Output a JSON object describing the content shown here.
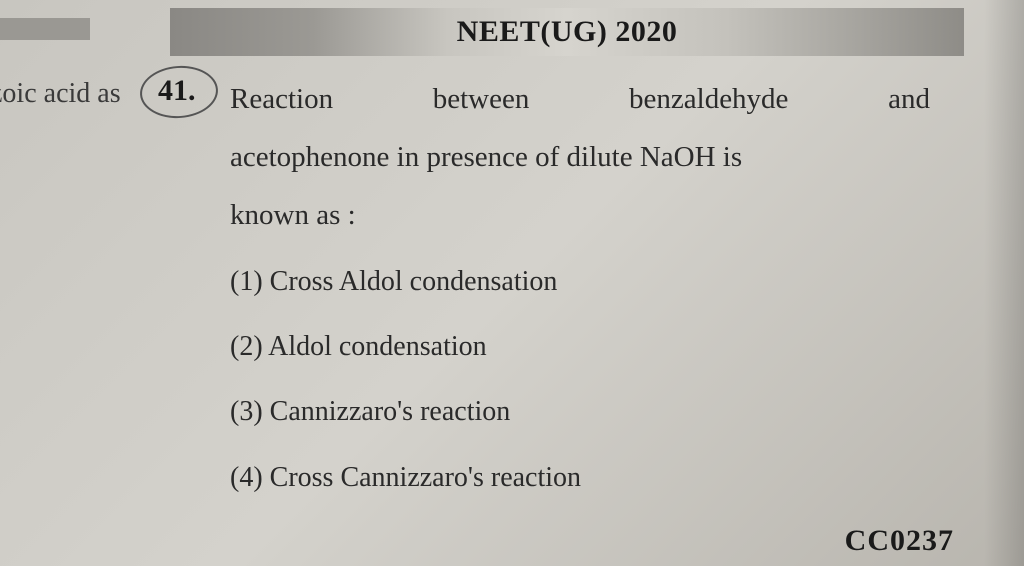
{
  "header": {
    "title": "NEET(UG) 2020"
  },
  "left_fragment": "zoic acid as",
  "question": {
    "number": "41.",
    "line1_words": [
      "Reaction",
      "between",
      "benzaldehyde",
      "and"
    ],
    "line2": "acetophenone in presence of dilute NaOH is",
    "line3": "known as :",
    "options": [
      "(1) Cross Aldol condensation",
      "(2) Aldol condensation",
      "(3) Cannizzaro's reaction",
      "(4) Cross Cannizzaro's reaction"
    ]
  },
  "footer_code": "CC0237",
  "colors": {
    "text": "#2a2a2a",
    "header_dark": "#1a1a1a",
    "paper_bg": "#c8c6c0"
  }
}
